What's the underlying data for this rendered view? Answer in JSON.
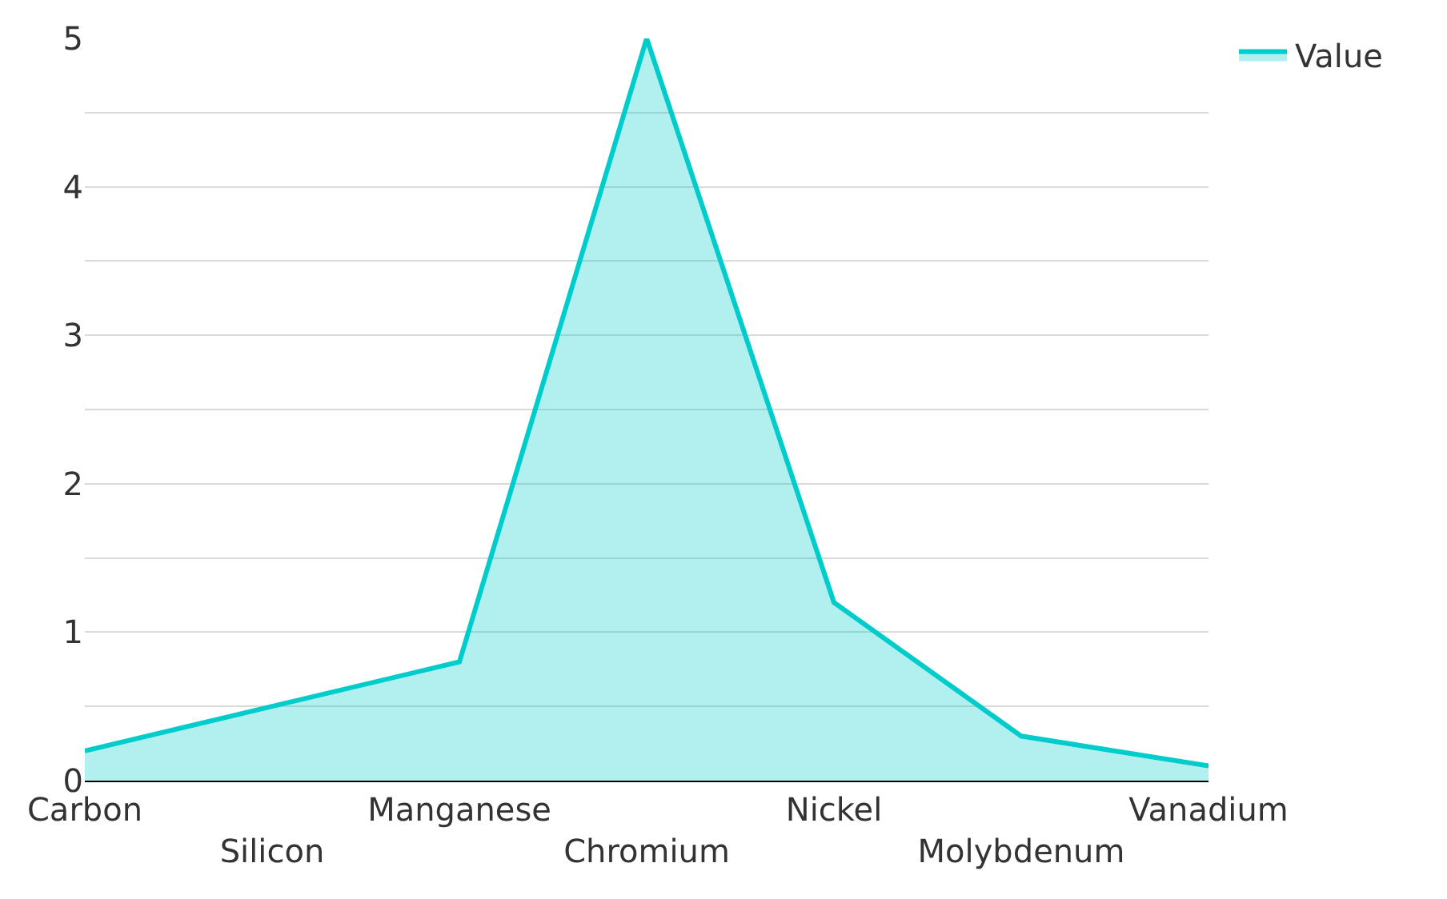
{
  "chart_data": {
    "type": "area",
    "categories": [
      "Carbon",
      "Silicon",
      "Manganese",
      "Chromium",
      "Nickel",
      "Molybdenum",
      "Vanadium"
    ],
    "series": [
      {
        "name": "Value",
        "color": "#00cccc",
        "values": [
          0.2,
          0.5,
          0.8,
          5,
          1.2,
          0.3,
          0.1
        ]
      }
    ],
    "ylim": [
      0,
      5
    ],
    "yticks": [
      0,
      {
        "value": 0.5,
        "label": null
      },
      1,
      {
        "value": 1.5,
        "label": null
      },
      2,
      {
        "value": 2.5,
        "label": null
      },
      3,
      {
        "value": 3.5,
        "label": null
      },
      4,
      {
        "value": 4.5,
        "label": null
      },
      5
    ],
    "grid": "y",
    "legend": "top right"
  }
}
